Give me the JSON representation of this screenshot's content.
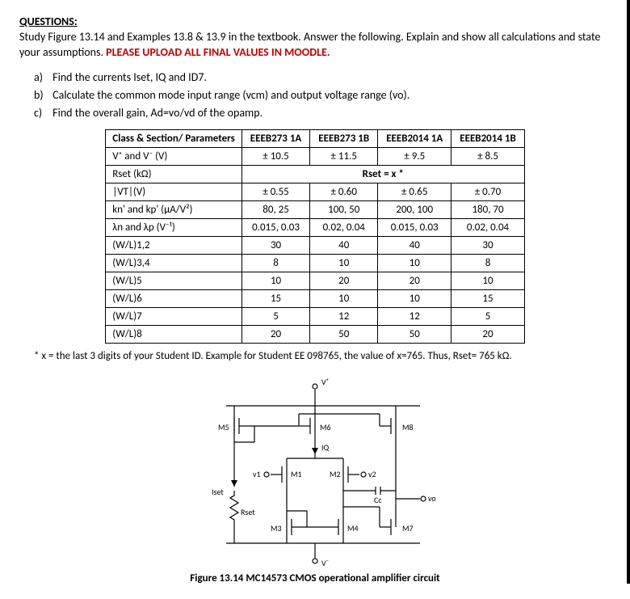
{
  "header": "QUESTIONS:",
  "intro_a": "Study Figure 13.14 and Examples 13.8 & 13.9 in the textbook. Answer the following. Explain and show all calculations and state your assumptions. ",
  "intro_b": "PLEASE UPLOAD ALL FINAL VALUES IN MOODLE.",
  "questions": {
    "a": {
      "label": "a)",
      "text": "Find the currents Iset, IQ and ID7."
    },
    "b": {
      "label": "b)",
      "text": "Calculate the common mode input range (vcm) and output voltage range (vo)."
    },
    "c": {
      "label": "c)",
      "text": "Find the overall gain, Ad=vo/vd of the opamp."
    }
  },
  "table": {
    "head": {
      "p": "Class & Section/ Parameters",
      "c1": "EEEB273 1A",
      "c2": "EEEB273 1B",
      "c3": "EEEB2014 1A",
      "c4": "EEEB2014 1B"
    },
    "rows": [
      {
        "p": "V⁺ and V⁻ (V)",
        "c1": "± 10.5",
        "c2": "± 11.5",
        "c3": "± 9.5",
        "c4": "± 8.5"
      },
      {
        "p": "Rset (kΩ)",
        "span": "Rset = x *"
      },
      {
        "p": "|VT|(V)",
        "c1": "± 0.55",
        "c2": "± 0.60",
        "c3": "± 0.65",
        "c4": "± 0.70"
      },
      {
        "p": "kn' and kp' (µA/V²)",
        "c1": "80, 25",
        "c2": "100, 50",
        "c3": "200, 100",
        "c4": "180, 70"
      },
      {
        "p": "λn and λp (V⁻¹)",
        "c1": "0.015, 0.03",
        "c2": "0.02, 0.04",
        "c3": "0.015, 0.03",
        "c4": "0.02, 0.04"
      },
      {
        "p": "(W/L)1,2",
        "c1": "30",
        "c2": "40",
        "c3": "40",
        "c4": "30"
      },
      {
        "p": "(W/L)3,4",
        "c1": "8",
        "c2": "10",
        "c3": "10",
        "c4": "8"
      },
      {
        "p": "(W/L)5",
        "c1": "10",
        "c2": "20",
        "c3": "20",
        "c4": "10"
      },
      {
        "p": "(W/L)6",
        "c1": "15",
        "c2": "10",
        "c3": "10",
        "c4": "15"
      },
      {
        "p": "(W/L)7",
        "c1": "5",
        "c2": "12",
        "c3": "12",
        "c4": "5"
      },
      {
        "p": "(W/L)8",
        "c1": "20",
        "c2": "50",
        "c3": "50",
        "c4": "20"
      }
    ]
  },
  "footnote": "* x = the last 3 digits of your Student ID. Example for Student EE 098765, the value of x=765. Thus, Rset= 765 kΩ.",
  "circuit": {
    "vplus": "V⁺",
    "vminus": "V⁻",
    "m1": "M1",
    "m2": "M2",
    "m3": "M3",
    "m4": "M4",
    "m5": "M5",
    "m6": "M6",
    "m7": "M7",
    "m8": "M8",
    "v1": "v1",
    "v2": "v2",
    "vo": "vo",
    "iset": "Iset",
    "rset": "Rset",
    "iq": "IQ",
    "cc": "Cc"
  },
  "figcaption": "Figure 13.14  MC14573 CMOS operational amplifier circuit",
  "style": {
    "text_color": "#000000",
    "accent_color": "#c00000",
    "table_border": "#000000",
    "font_main": "Calibri, Arial, sans-serif",
    "cell_padding": "3px 10px"
  }
}
